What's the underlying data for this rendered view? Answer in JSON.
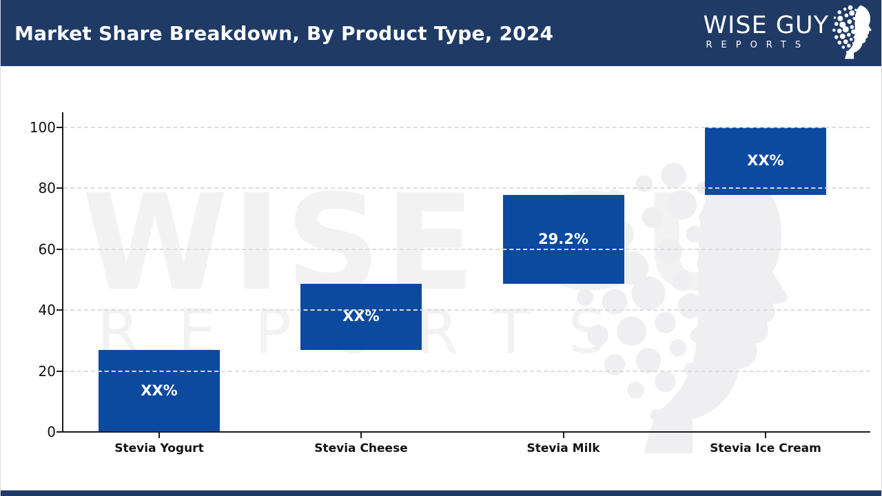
{
  "header": {
    "title": "Market Share Breakdown, By Product Type, 2024",
    "logo": {
      "line1": "WISE GUY",
      "line2": "REPORTS"
    }
  },
  "watermark": {
    "line1": "WISE GU",
    "line2": "REPORTS"
  },
  "chart_data": {
    "type": "bar",
    "subtype": "floating-waterfall",
    "title": "Market Share Breakdown, By Product Type, 2024",
    "categories": [
      "Stevia Yogurt",
      "Stevia Cheese",
      "Stevia Milk",
      "Stevia Ice Cream"
    ],
    "segments": [
      {
        "category": "Stevia Yogurt",
        "start": 0,
        "end": 26.9,
        "label": "XX%"
      },
      {
        "category": "Stevia Cheese",
        "start": 26.9,
        "end": 48.6,
        "label": "XX%"
      },
      {
        "category": "Stevia Milk",
        "start": 48.6,
        "end": 77.8,
        "label": "29.2%"
      },
      {
        "category": "Stevia Ice Cream",
        "start": 77.8,
        "end": 100,
        "label": "XX%"
      }
    ],
    "yticks": [
      0,
      20,
      40,
      60,
      80,
      100
    ],
    "ylim": [
      0,
      104
    ],
    "xlabel": "",
    "ylabel": "",
    "grid": "horizontal-dashed",
    "legend": "none",
    "bar_color": "#0C4AA0",
    "bar_label_color": "#ffffff",
    "header_color": "#203A66"
  }
}
